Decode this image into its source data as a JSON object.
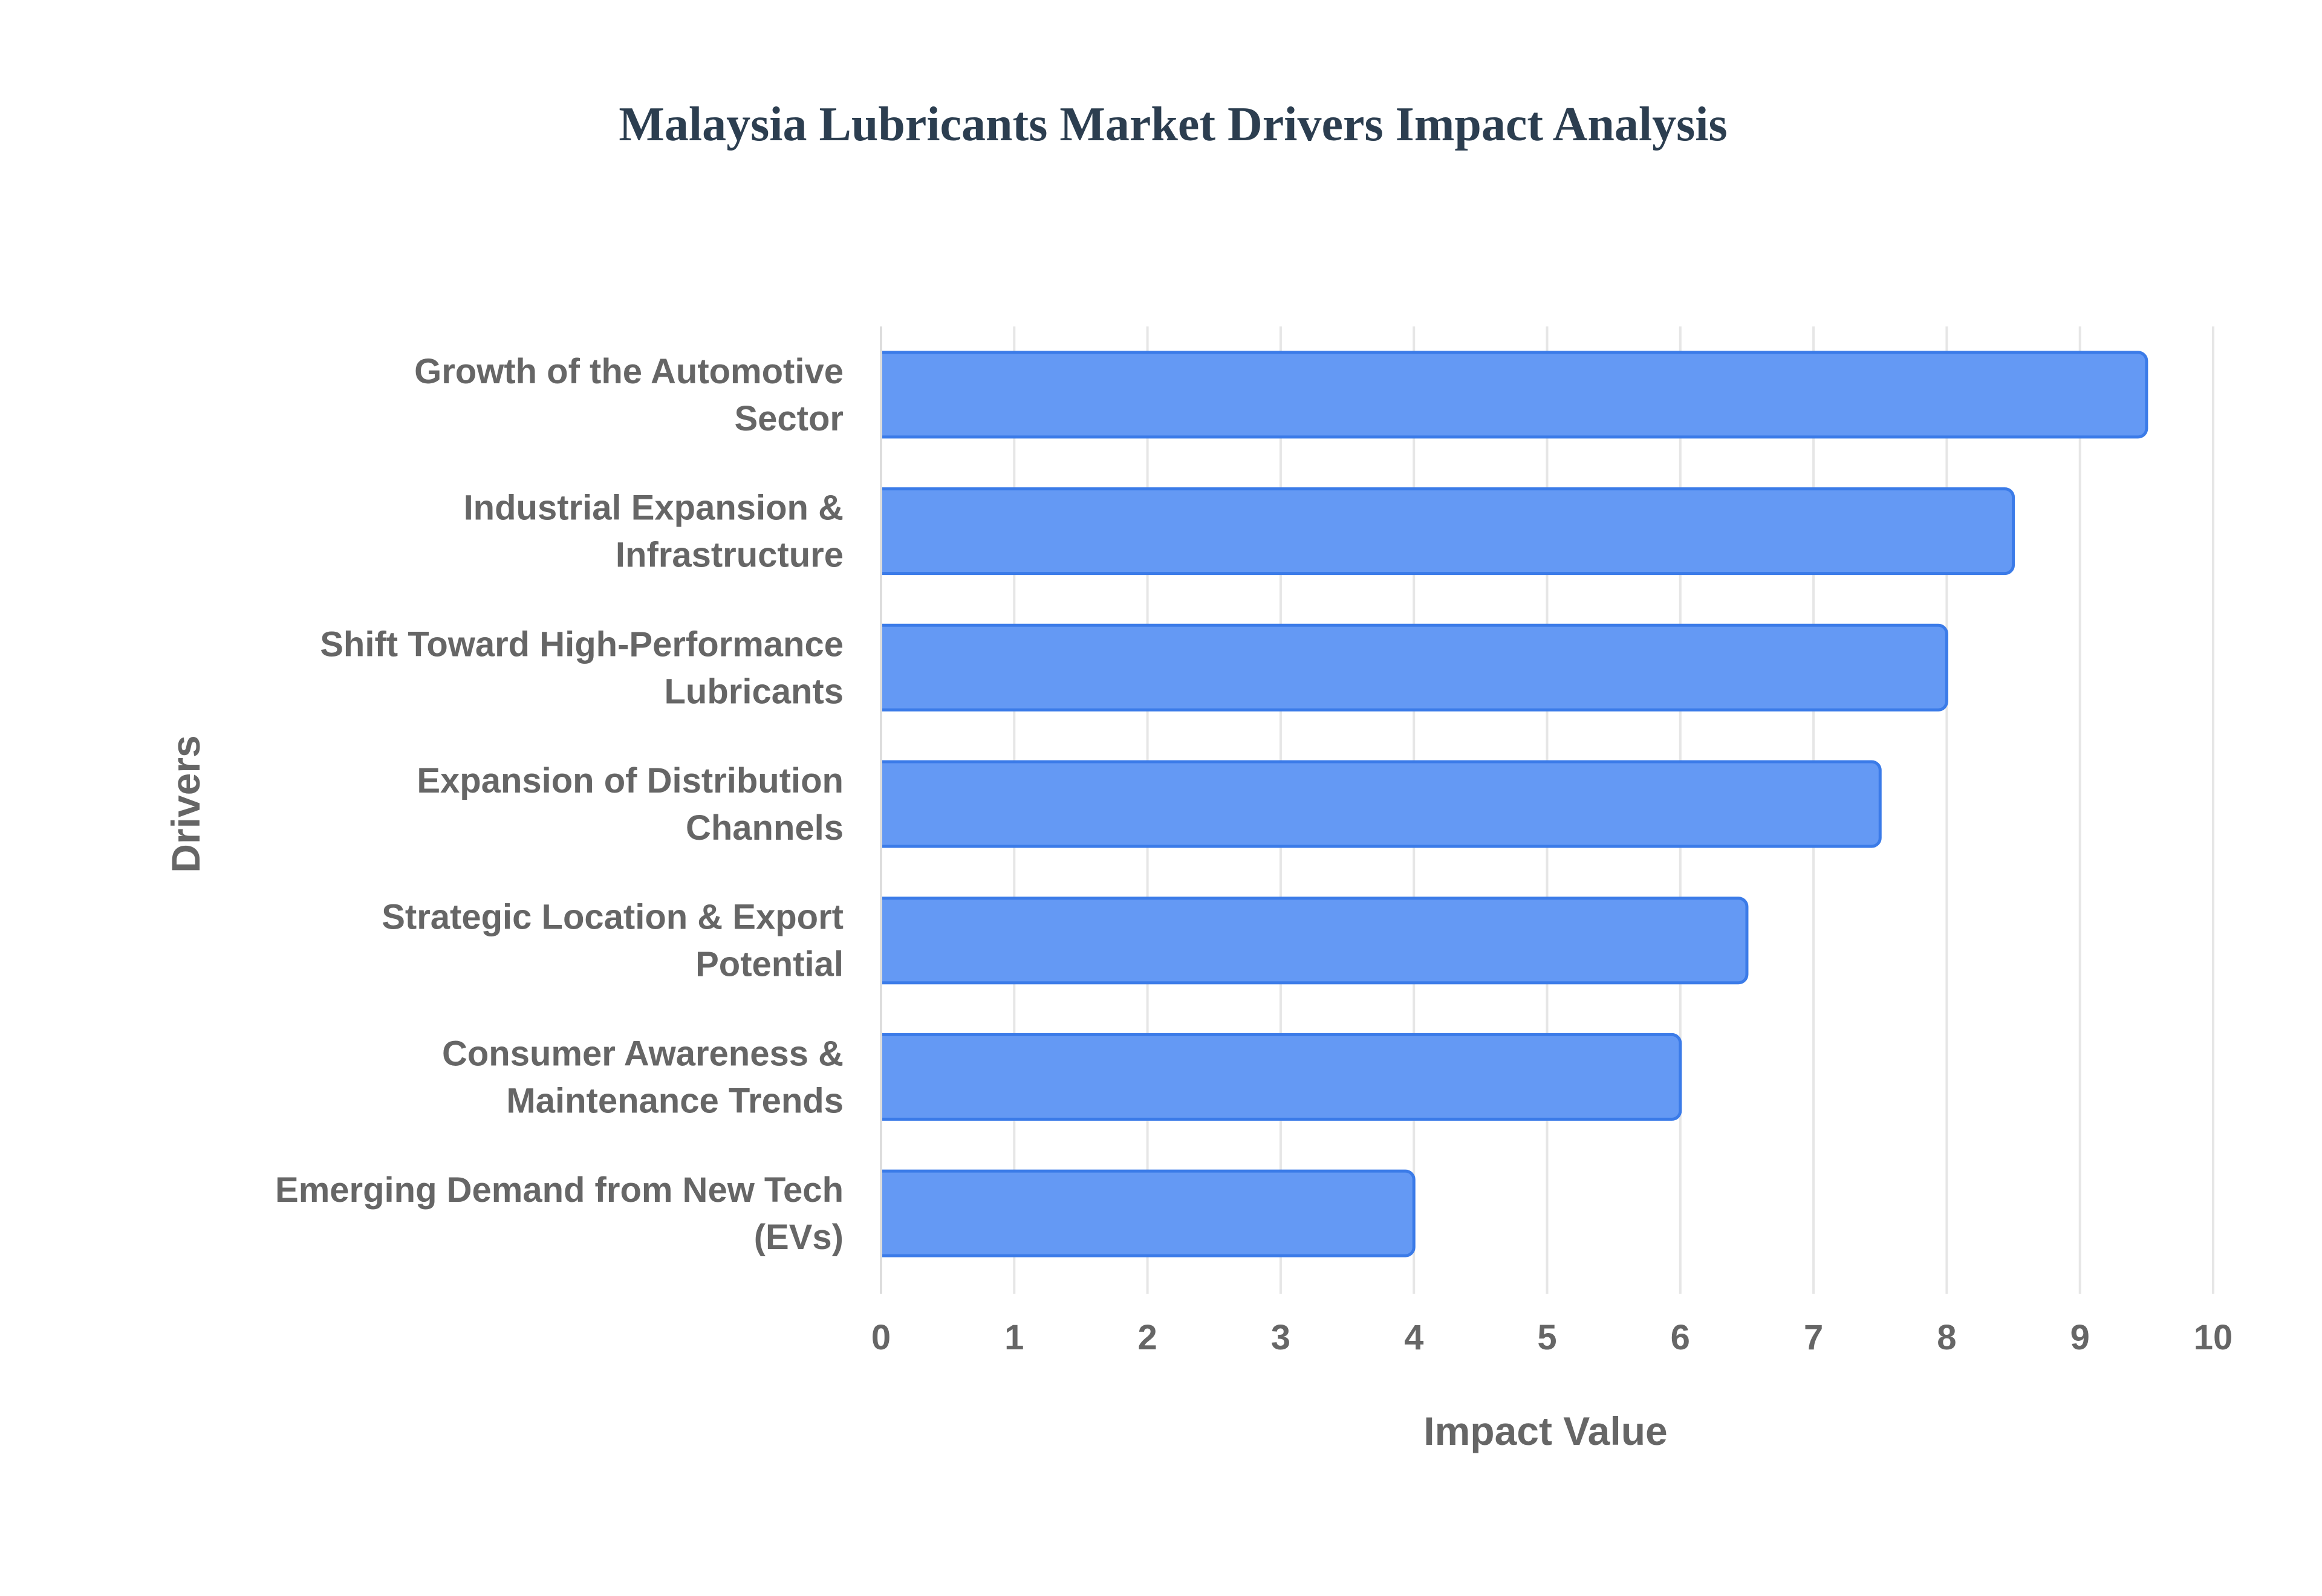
{
  "chart_data": {
    "type": "bar",
    "orientation": "horizontal",
    "title": "Malaysia Lubricants Market Drivers Impact Analysis",
    "xlabel": "Impact Value",
    "ylabel": "Drivers",
    "xlim": [
      0,
      10
    ],
    "x_ticks": [
      "0",
      "1",
      "2",
      "3",
      "4",
      "5",
      "6",
      "7",
      "8",
      "9",
      "10"
    ],
    "grid": true,
    "legend": "none",
    "bar_color": "#6499f4",
    "bar_border_color": "#3b7be8",
    "categories": [
      [
        "Growth of the Automotive",
        "Sector"
      ],
      [
        "Industrial Expansion &",
        "Infrastructure"
      ],
      [
        "Shift Toward High-Performance",
        "Lubricants"
      ],
      [
        "Expansion of Distribution",
        "Channels"
      ],
      [
        "Strategic Location & Export",
        "Potential"
      ],
      [
        "Consumer Awareness &",
        "Maintenance Trends"
      ],
      [
        "Emerging Demand from New Tech",
        "(EVs)"
      ]
    ],
    "values": [
      9.5,
      8.5,
      8,
      7.5,
      6.5,
      6,
      4
    ]
  }
}
